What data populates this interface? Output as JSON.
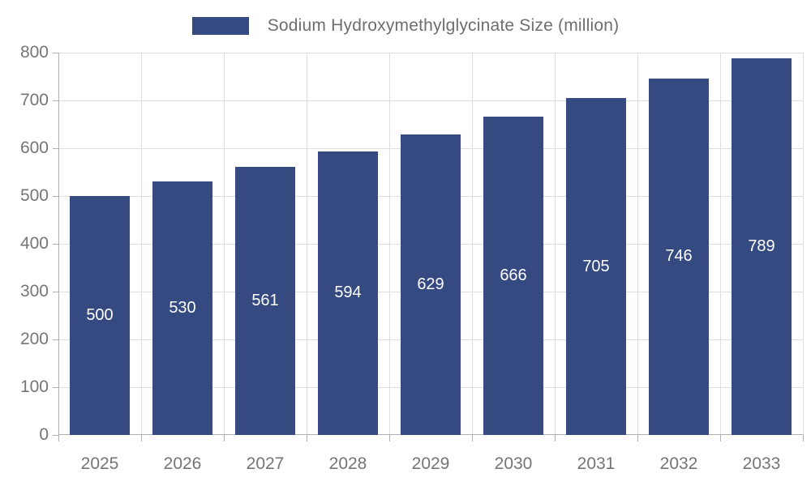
{
  "chart_data": {
    "type": "bar",
    "title": "Sodium Hydroxymethylglycinate Size (million)",
    "categories": [
      "2025",
      "2026",
      "2027",
      "2028",
      "2029",
      "2030",
      "2031",
      "2032",
      "2033"
    ],
    "values": [
      500,
      530,
      561,
      594,
      629,
      666,
      705,
      746,
      789
    ],
    "xlabel": "",
    "ylabel": "",
    "ylim": [
      0,
      800
    ],
    "ytick_step": 100,
    "yticks": [
      0,
      100,
      200,
      300,
      400,
      500,
      600,
      700,
      800
    ],
    "grid": true,
    "legend_position": "top-center",
    "legend_label": "Sodium Hydroxymethylglycinate Size (million)",
    "colors": {
      "bar": "#354A81",
      "bar_value_label": "#ffffff",
      "axis_text": "#757575",
      "legend_text": "#6e6e6e",
      "gridline": "#dedede",
      "axis_line": "#b0b0b0"
    }
  }
}
